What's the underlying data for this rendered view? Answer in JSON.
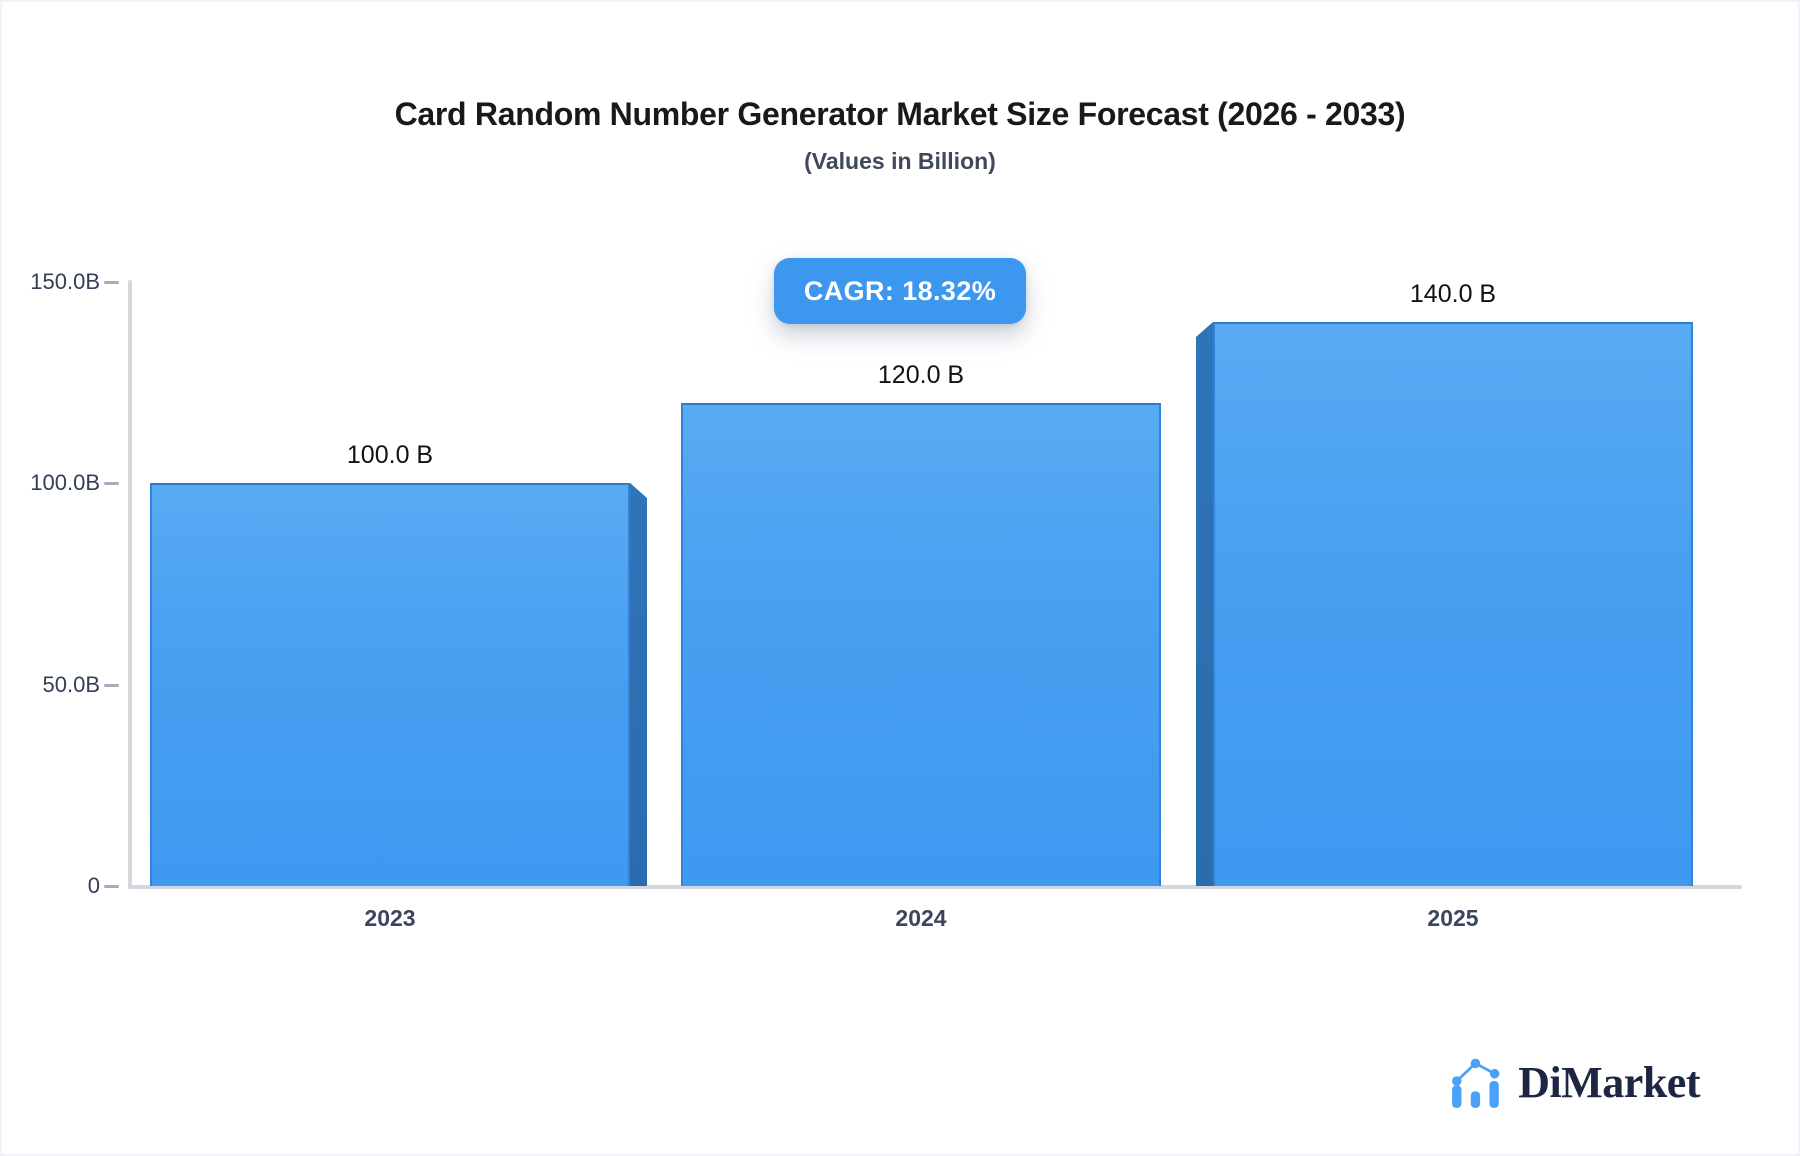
{
  "header": {
    "title": "Card Random Number Generator Market Size Forecast (2026 - 2033)",
    "subtitle": "(Values in Billion)"
  },
  "badge": {
    "label": "CAGR: 18.32%"
  },
  "watermark": {
    "brand": "DiMarket",
    "icon": "bar-chart-trend-icon"
  },
  "colors": {
    "bar_top": "#58abf3",
    "bar_bottom": "#3d9af1",
    "bar_border": "#2e84d8",
    "bar_bevel": "#2d70b3",
    "badge_background": "#3c97ef",
    "badge_text": "#ffffff",
    "axis_line": "#d3d7de",
    "tick_mark": "#a6acb8",
    "axis_label": "#323f55",
    "title_text": "#17191d",
    "logo_navy": "#1d2742",
    "logo_blue": "#4ba1f6"
  },
  "chart_data": {
    "type": "bar",
    "title": "Card Random Number Generator Market Size Forecast (2026 - 2033)",
    "subtitle": "(Values in Billion)",
    "unit": "Billion",
    "cagr": "18.32%",
    "categories": [
      "2023",
      "2024",
      "2025"
    ],
    "values": [
      100.0,
      120.0,
      140.0
    ],
    "value_labels": [
      "100.0 B",
      "120.0 B",
      "140.0 B"
    ],
    "ylim": [
      0,
      150
    ],
    "y_ticks": [
      {
        "value": 150,
        "label": "150.0B"
      },
      {
        "value": 100,
        "label": "100.0B"
      },
      {
        "value": 50,
        "label": "50.0B"
      },
      {
        "value": 0,
        "label": "0"
      }
    ],
    "grid": false,
    "legend": false
  }
}
